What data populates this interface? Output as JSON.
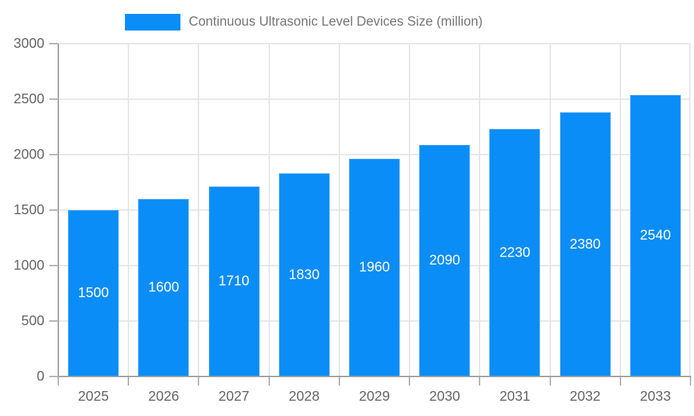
{
  "chart_data": {
    "type": "bar",
    "title": "Continuous Ultrasonic Level Devices Size (million)",
    "legend": {
      "position": "top",
      "entries": [
        "Continuous Ultrasonic Level Devices Size (million)"
      ]
    },
    "categories": [
      "2025",
      "2026",
      "2027",
      "2028",
      "2029",
      "2030",
      "2031",
      "2032",
      "2033"
    ],
    "series": [
      {
        "name": "Continuous Ultrasonic Level Devices Size (million)",
        "values": [
          1500,
          1600,
          1710,
          1830,
          1960,
          2090,
          2230,
          2380,
          2540
        ]
      }
    ],
    "bar_labels": [
      1500,
      1600,
      1710,
      1830,
      1960,
      2090,
      2230,
      2380,
      2540
    ],
    "xlabel": "",
    "ylabel": "",
    "ylim": [
      0,
      3000
    ],
    "yticks": [
      0,
      500,
      1000,
      1500,
      2000,
      2500,
      3000
    ],
    "grid": true,
    "colors": {
      "bar": "#0a8df7",
      "bar_label": "#ffffff",
      "legend_text": "#757575",
      "axis_text": "#666666",
      "axis_line": "#9e9e9e",
      "tick": "#b0b0b0",
      "grid_line": "#e6e6e6",
      "background": "#ffffff"
    }
  }
}
